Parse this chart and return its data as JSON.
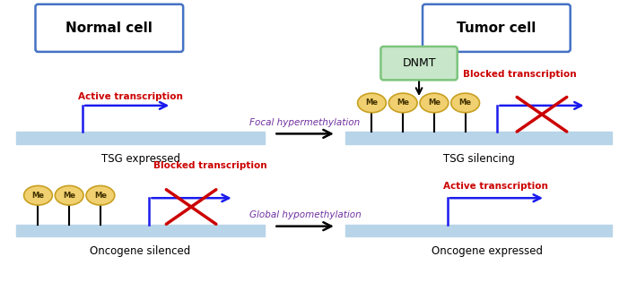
{
  "bg_color": "#ffffff",
  "dna_color": "#b8d4e8",
  "me_color": "#f0d070",
  "me_border": "#c8a020",
  "active_color": "#cc0000",
  "blocked_color": "#cc0000",
  "arrow_color": "#1a1aee",
  "focal_label": "Focal hypermethylation",
  "global_label": "Global hypomethylation",
  "label_color": "#7030a0",
  "tsg_expressed": "TSG expressed",
  "tsg_silencing": "TSG silencing",
  "oncogene_silenced": "Oncogene silenced",
  "oncogene_expressed": "Oncogene expressed",
  "normal_cell": "Normal cell",
  "tumor_cell": "Tumor cell",
  "dnmt_text": "DNMT",
  "box_border": "#4472c4",
  "dnmt_border": "#7dc47d",
  "dnmt_fill": "#c8e6c9"
}
